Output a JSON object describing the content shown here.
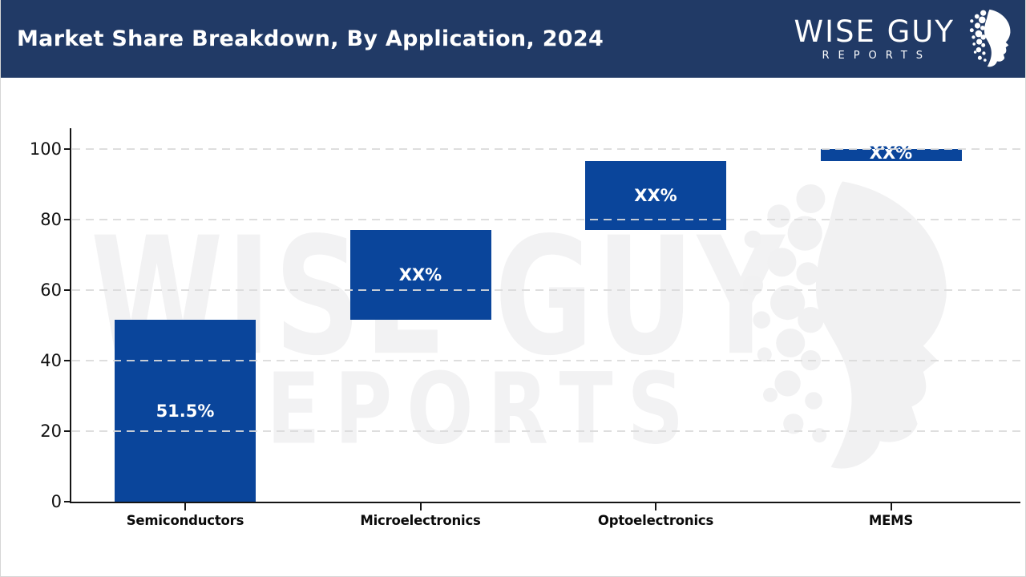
{
  "header": {
    "title": "Market Share Breakdown, By Application, 2024",
    "bg_color": "#213a66",
    "logo": {
      "line1": "WISE GUY",
      "line2": "REPORTS"
    }
  },
  "watermark": {
    "line1": "WISE GUY",
    "line2": "REPORTS"
  },
  "chart_data": {
    "type": "bar",
    "subtype": "floating-waterfall",
    "title": "Market Share Breakdown, By Application, 2024",
    "categories": [
      "Semiconductors",
      "Microelectronics",
      "Optoelectronics",
      "MEMS"
    ],
    "segments": [
      {
        "category": "Semiconductors",
        "start": 0,
        "end": 51.5,
        "label": "51.5%"
      },
      {
        "category": "Microelectronics",
        "start": 51.5,
        "end": 77,
        "label": "XX%"
      },
      {
        "category": "Optoelectronics",
        "start": 77,
        "end": 96.5,
        "label": "XX%"
      },
      {
        "category": "MEMS",
        "start": 96.5,
        "end": 100,
        "label": "XX%"
      }
    ],
    "yticks": [
      0,
      20,
      40,
      60,
      80,
      100
    ],
    "ylim": [
      0,
      105
    ],
    "xlabel": "",
    "ylabel": "",
    "grid": "horizontal-dashed",
    "legend": "none",
    "bar_color": "#0a459b",
    "label_color": "#ffffff"
  }
}
